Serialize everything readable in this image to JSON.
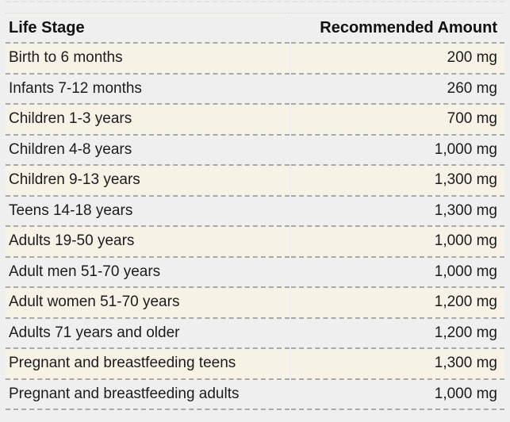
{
  "colors": {
    "page_background": "#efeff0",
    "row_highlight": "#f7f2e6",
    "row_divider": "#a9a9a9",
    "text": "#1c1c1c"
  },
  "table": {
    "headers": {
      "life_stage": "Life Stage",
      "amount": "Recommended Amount"
    },
    "rows": [
      {
        "life_stage": "Birth to 6 months",
        "amount": "200 mg"
      },
      {
        "life_stage": "Infants 7-12 months",
        "amount": "260 mg"
      },
      {
        "life_stage": "Children 1-3 years",
        "amount": "700 mg"
      },
      {
        "life_stage": "Children 4-8 years",
        "amount": "1,000 mg"
      },
      {
        "life_stage": "Children 9-13 years",
        "amount": "1,300 mg"
      },
      {
        "life_stage": "Teens 14-18 years",
        "amount": "1,300 mg"
      },
      {
        "life_stage": "Adults 19-50 years",
        "amount": "1,000 mg"
      },
      {
        "life_stage": "Adult men 51-70 years",
        "amount": "1,000 mg"
      },
      {
        "life_stage": "Adult women 51-70 years",
        "amount": "1,200 mg"
      },
      {
        "life_stage": "Adults 71 years and older",
        "amount": "1,200 mg"
      },
      {
        "life_stage": "Pregnant and breastfeeding teens",
        "amount": "1,300 mg"
      },
      {
        "life_stage": "Pregnant and breastfeeding adults",
        "amount": "1,000 mg"
      }
    ]
  }
}
